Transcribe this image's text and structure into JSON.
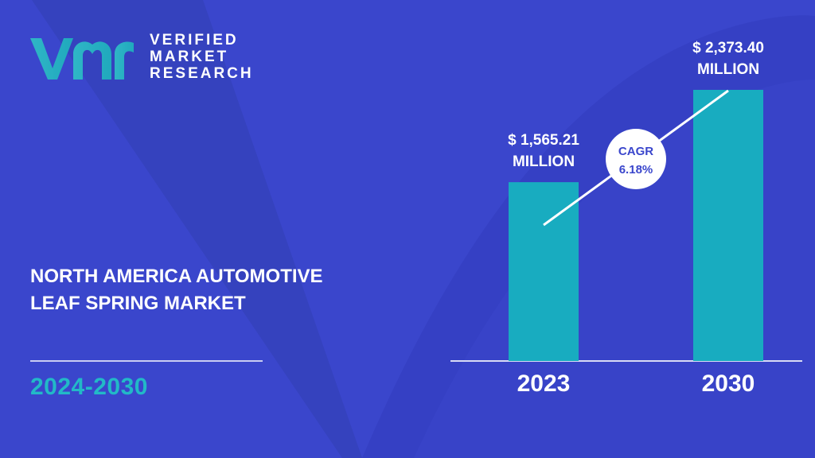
{
  "logo": {
    "line1": "VERIFIED",
    "line2": "MARKET",
    "line3": "RESEARCH"
  },
  "title_lines": [
    "NORTH AMERICA AUTOMOTIVE",
    "LEAF SPRING MARKET"
  ],
  "period": "2024-2030",
  "colors": {
    "background": "#3a46cc",
    "bar": "#18acc0",
    "accent_text": "#22b9c7",
    "text": "#ffffff"
  },
  "chart_data": {
    "type": "bar",
    "categories": [
      "2023",
      "2030"
    ],
    "values": [
      1565.21,
      2373.4
    ],
    "value_labels": [
      [
        "$ 1,565.21",
        "MILLION"
      ],
      [
        "$ 2,373.40",
        "MILLION"
      ]
    ],
    "cagr": {
      "label": "CAGR",
      "value": "6.18%"
    }
  }
}
